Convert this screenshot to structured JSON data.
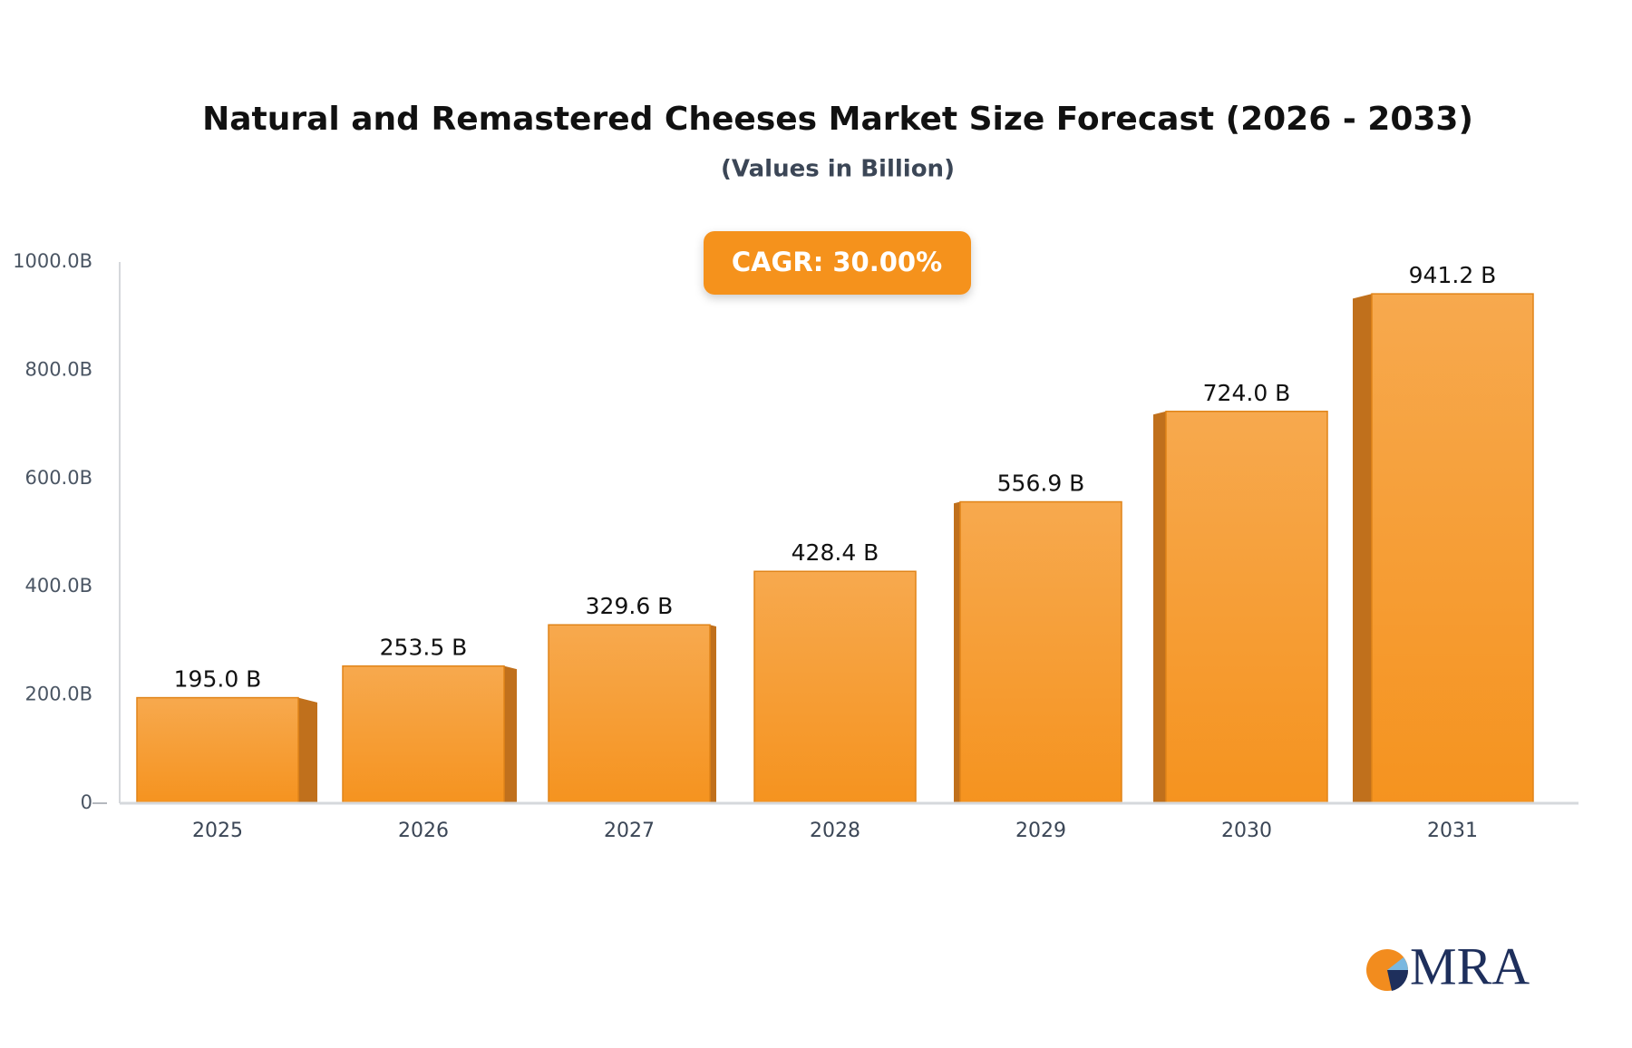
{
  "chart_data": {
    "type": "bar3d",
    "title": "Natural and Remastered Cheeses Market Size Forecast (2026 - 2033)",
    "subtitle": "(Values in Billion)",
    "annotation": "CAGR: 30.00%",
    "categories": [
      "2025",
      "2026",
      "2027",
      "2028",
      "2029",
      "2030",
      "2031"
    ],
    "values": [
      195.0,
      253.5,
      329.6,
      428.4,
      556.9,
      724.0,
      941.2
    ],
    "value_labels": [
      "195.0 B",
      "253.5 B",
      "329.6 B",
      "428.4 B",
      "556.9 B",
      "724.0 B",
      "941.2 B"
    ],
    "color": "#f5962a",
    "ylim": [
      0,
      1000
    ],
    "yticks": [
      0,
      {
        "value": 200,
        "label": "200.0B"
      },
      {
        "value": 400,
        "label": "400.0B"
      },
      {
        "value": 600,
        "label": "600.0B"
      },
      {
        "value": 800,
        "label": "800.0B"
      },
      {
        "value": 1000,
        "label": "1000.0B"
      }
    ],
    "grid": false
  },
  "logo": "MRA"
}
